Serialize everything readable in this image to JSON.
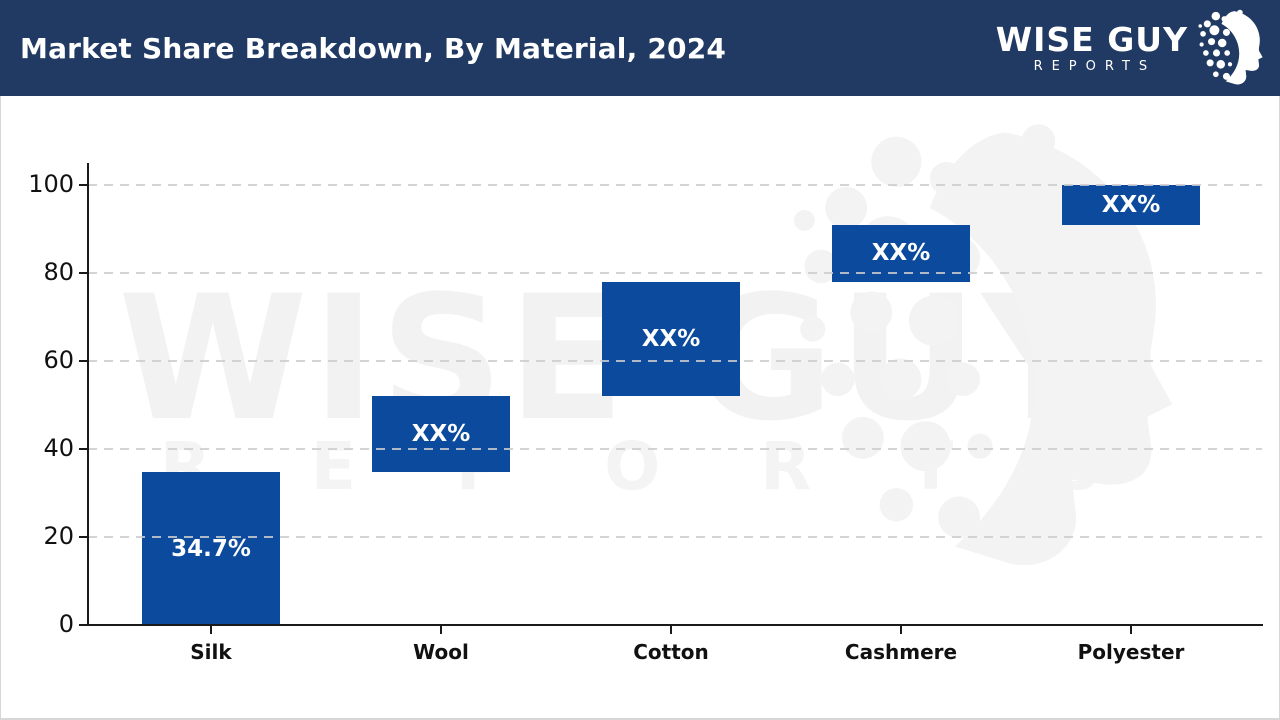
{
  "header": {
    "title": "Market Share Breakdown, By Material, 2024",
    "logo_line1": "WISE GUY",
    "logo_line2": "REPORTS"
  },
  "watermark": {
    "line1": "WISE GUY",
    "line2": "REPORTS"
  },
  "colors": {
    "header_bg": "#213A63",
    "bar": "#0B4A9C",
    "grid": "#D9D9D9",
    "axis": "#1A1A1A",
    "bar_label": "#FFFFFF",
    "watermark": "#F2F2F2"
  },
  "chart_data": {
    "type": "bar",
    "subtype": "waterfall",
    "title": "Market Share Breakdown, By Material, 2024",
    "categories": [
      "Silk",
      "Wool",
      "Cotton",
      "Cashmere",
      "Polyester"
    ],
    "bars": [
      {
        "category": "Silk",
        "start": 0,
        "end": 34.7,
        "label": "34.7%"
      },
      {
        "category": "Wool",
        "start": 34.7,
        "end": 52.0,
        "label": "XX%"
      },
      {
        "category": "Cotton",
        "start": 52.0,
        "end": 78.0,
        "label": "XX%"
      },
      {
        "category": "Cashmere",
        "start": 78.0,
        "end": 91.0,
        "label": "XX%"
      },
      {
        "category": "Polyester",
        "start": 91.0,
        "end": 100.0,
        "label": "XX%"
      }
    ],
    "xlabel": "",
    "ylabel": "",
    "ylim": [
      0,
      105
    ],
    "y_ticks": [
      0,
      20,
      40,
      60,
      80,
      100
    ],
    "grid": "horizontal-dashed",
    "legend": "none"
  }
}
